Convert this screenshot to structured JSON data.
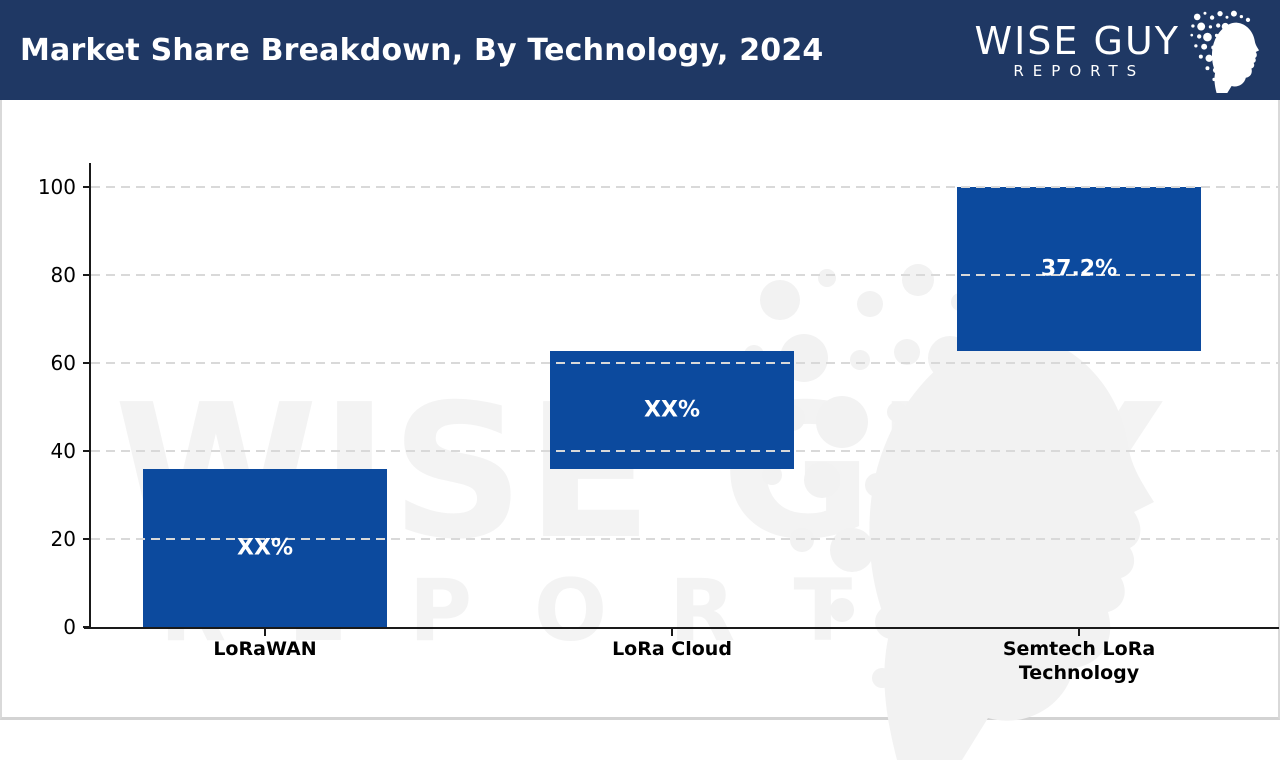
{
  "header": {
    "title": "Market Share Breakdown, By Technology, 2024",
    "background_color": "#1f3864",
    "logo": {
      "brand_name": "WISE GUY",
      "brand_subtitle": "REPORTS"
    }
  },
  "watermark": {
    "brand_name": "WISE GUY",
    "brand_subtitle": "REPORTS"
  },
  "chart_data": {
    "type": "bar",
    "variant": "floating-waterfall-percentage",
    "title": "Market Share Breakdown, By Technology, 2024",
    "categories": [
      "LoRaWAN",
      "LoRa Cloud",
      "Semtech LoRa Technology"
    ],
    "segments": [
      {
        "category": "LoRaWAN",
        "from": 0,
        "to": 35.8,
        "label": "XX%"
      },
      {
        "category": "LoRa Cloud",
        "from": 35.8,
        "to": 62.8,
        "label": "XX%"
      },
      {
        "category": "Semtech LoRa Technology",
        "from": 62.8,
        "to": 100,
        "label": "37.2%"
      }
    ],
    "ylim": [
      0,
      100
    ],
    "yticks": [
      0,
      20,
      40,
      60,
      80,
      100
    ],
    "xlabel": "",
    "ylabel": "",
    "legend": "none",
    "grid": {
      "horizontal": true,
      "style": "dashed",
      "color": "#d9d9d9",
      "drawn_above_bars": true
    },
    "bar_color": "#0c4a9e",
    "bar_label_color": "#ffffff",
    "axis_color": "#1a1a1a"
  }
}
